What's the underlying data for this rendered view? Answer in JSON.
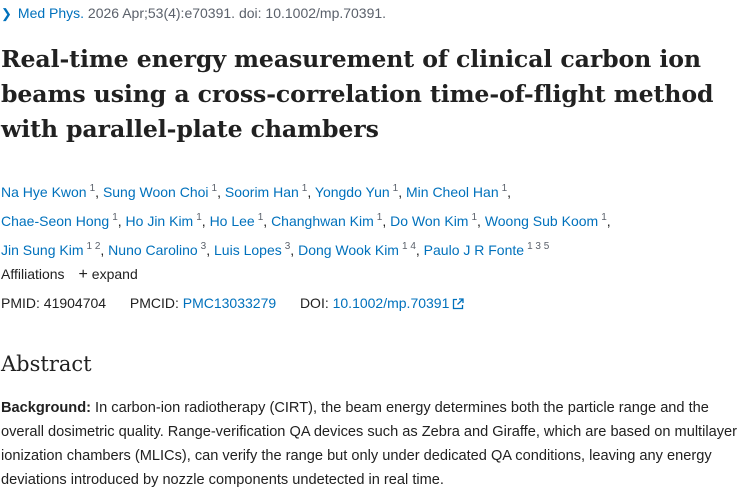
{
  "citation": {
    "journal": "Med Phys.",
    "details": " 2026 Apr;53(4):e70391. doi: 10.1002/mp.70391."
  },
  "title": "Real-time energy measurement of clinical carbon ion beams using a cross-correlation time-of-flight method with parallel-plate chambers",
  "authors": [
    {
      "name": "Na Hye Kwon",
      "aff": "1"
    },
    {
      "name": "Sung Woon Choi",
      "aff": "1"
    },
    {
      "name": "Soorim Han",
      "aff": "1"
    },
    {
      "name": "Yongdo Yun",
      "aff": "1"
    },
    {
      "name": "Min Cheol Han",
      "aff": "1"
    },
    {
      "name": "Chae-Seon Hong",
      "aff": "1"
    },
    {
      "name": "Ho Jin Kim",
      "aff": "1"
    },
    {
      "name": "Ho Lee",
      "aff": "1"
    },
    {
      "name": "Changhwan Kim",
      "aff": "1"
    },
    {
      "name": "Do Won Kim",
      "aff": "1"
    },
    {
      "name": "Woong Sub Koom",
      "aff": "1"
    },
    {
      "name": "Jin Sung Kim",
      "aff": "1 2"
    },
    {
      "name": "Nuno Carolino",
      "aff": "3"
    },
    {
      "name": "Luis Lopes",
      "aff": "3"
    },
    {
      "name": "Dong Wook Kim",
      "aff": "1 4"
    },
    {
      "name": "Paulo J R Fonte",
      "aff": "1 3 5"
    }
  ],
  "affiliations": {
    "label": "Affiliations",
    "expand_label": "expand"
  },
  "ids": {
    "pmid_label": "PMID:",
    "pmid": "41904704",
    "pmcid_label": "PMCID:",
    "pmcid": "PMC13033279",
    "doi_label": "DOI:",
    "doi": "10.1002/mp.70391"
  },
  "abstract": {
    "heading": "Abstract",
    "background_label": "Background:",
    "background_text": " In carbon-ion radiotherapy (CIRT), the beam energy determines both the particle range and the overall dosimetric quality. Range-verification QA devices such as Zebra and Giraffe, which are based on multilayer ionization chambers (MLICs), can verify the range but only under dedicated QA conditions, leaving any energy deviations introduced by nozzle components undetected in real time."
  },
  "colors": {
    "link": "#0071bc",
    "text": "#212121",
    "muted": "#5b616b"
  }
}
